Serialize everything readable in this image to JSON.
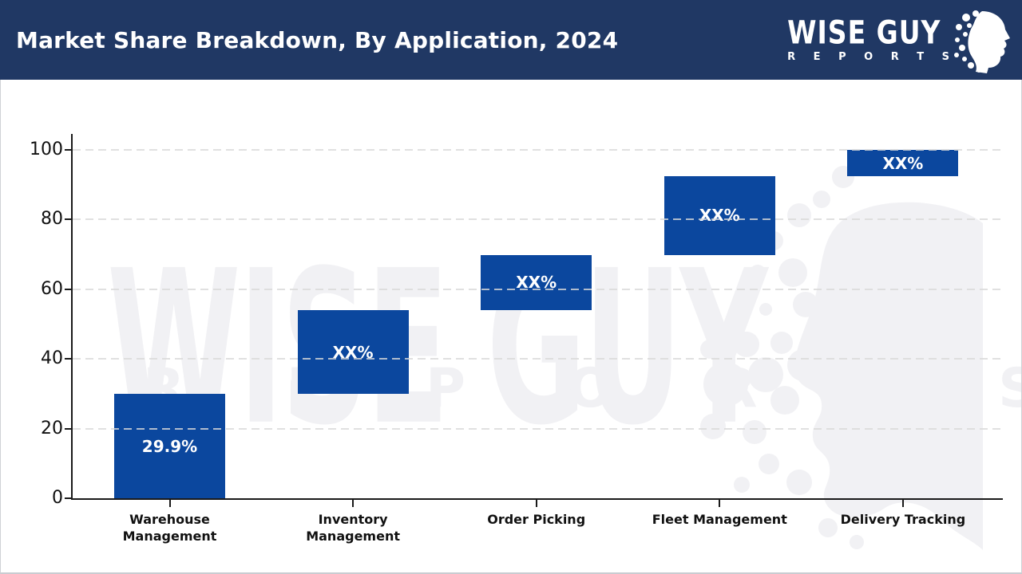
{
  "header": {
    "title": "Market Share Breakdown, By Application, 2024",
    "bg_color": "#203864",
    "logo": {
      "line1": "WISE GUY",
      "line2": "R E P O R T S"
    }
  },
  "watermark": {
    "line1": "WISE GUY",
    "line2": "R E P O R T S"
  },
  "chart_data": {
    "type": "bar",
    "subtype": "floating-waterfall",
    "title": "Market Share Breakdown, By Application, 2024",
    "categories": [
      [
        "Warehouse",
        "Management"
      ],
      [
        "Inventory",
        "Management"
      ],
      [
        "Order Picking"
      ],
      [
        "Fleet Management"
      ],
      [
        "Delivery Tracking"
      ]
    ],
    "segments": [
      {
        "start": 0,
        "end": 29.9,
        "label": "29.9%"
      },
      {
        "start": 29.9,
        "end": 53.9,
        "label": "XX%"
      },
      {
        "start": 53.9,
        "end": 69.9,
        "label": "XX%"
      },
      {
        "start": 69.9,
        "end": 92.4,
        "label": "XX%"
      },
      {
        "start": 92.4,
        "end": 100,
        "label": "XX%"
      }
    ],
    "ylim": [
      0,
      100
    ],
    "yticks": [
      0,
      20,
      40,
      60,
      80,
      100
    ],
    "xlabel": "",
    "ylabel": "",
    "grid": "dashed-horizontal",
    "legend": "none",
    "bar_color": "#0b479e",
    "bar_label_color": "#ffffff"
  }
}
